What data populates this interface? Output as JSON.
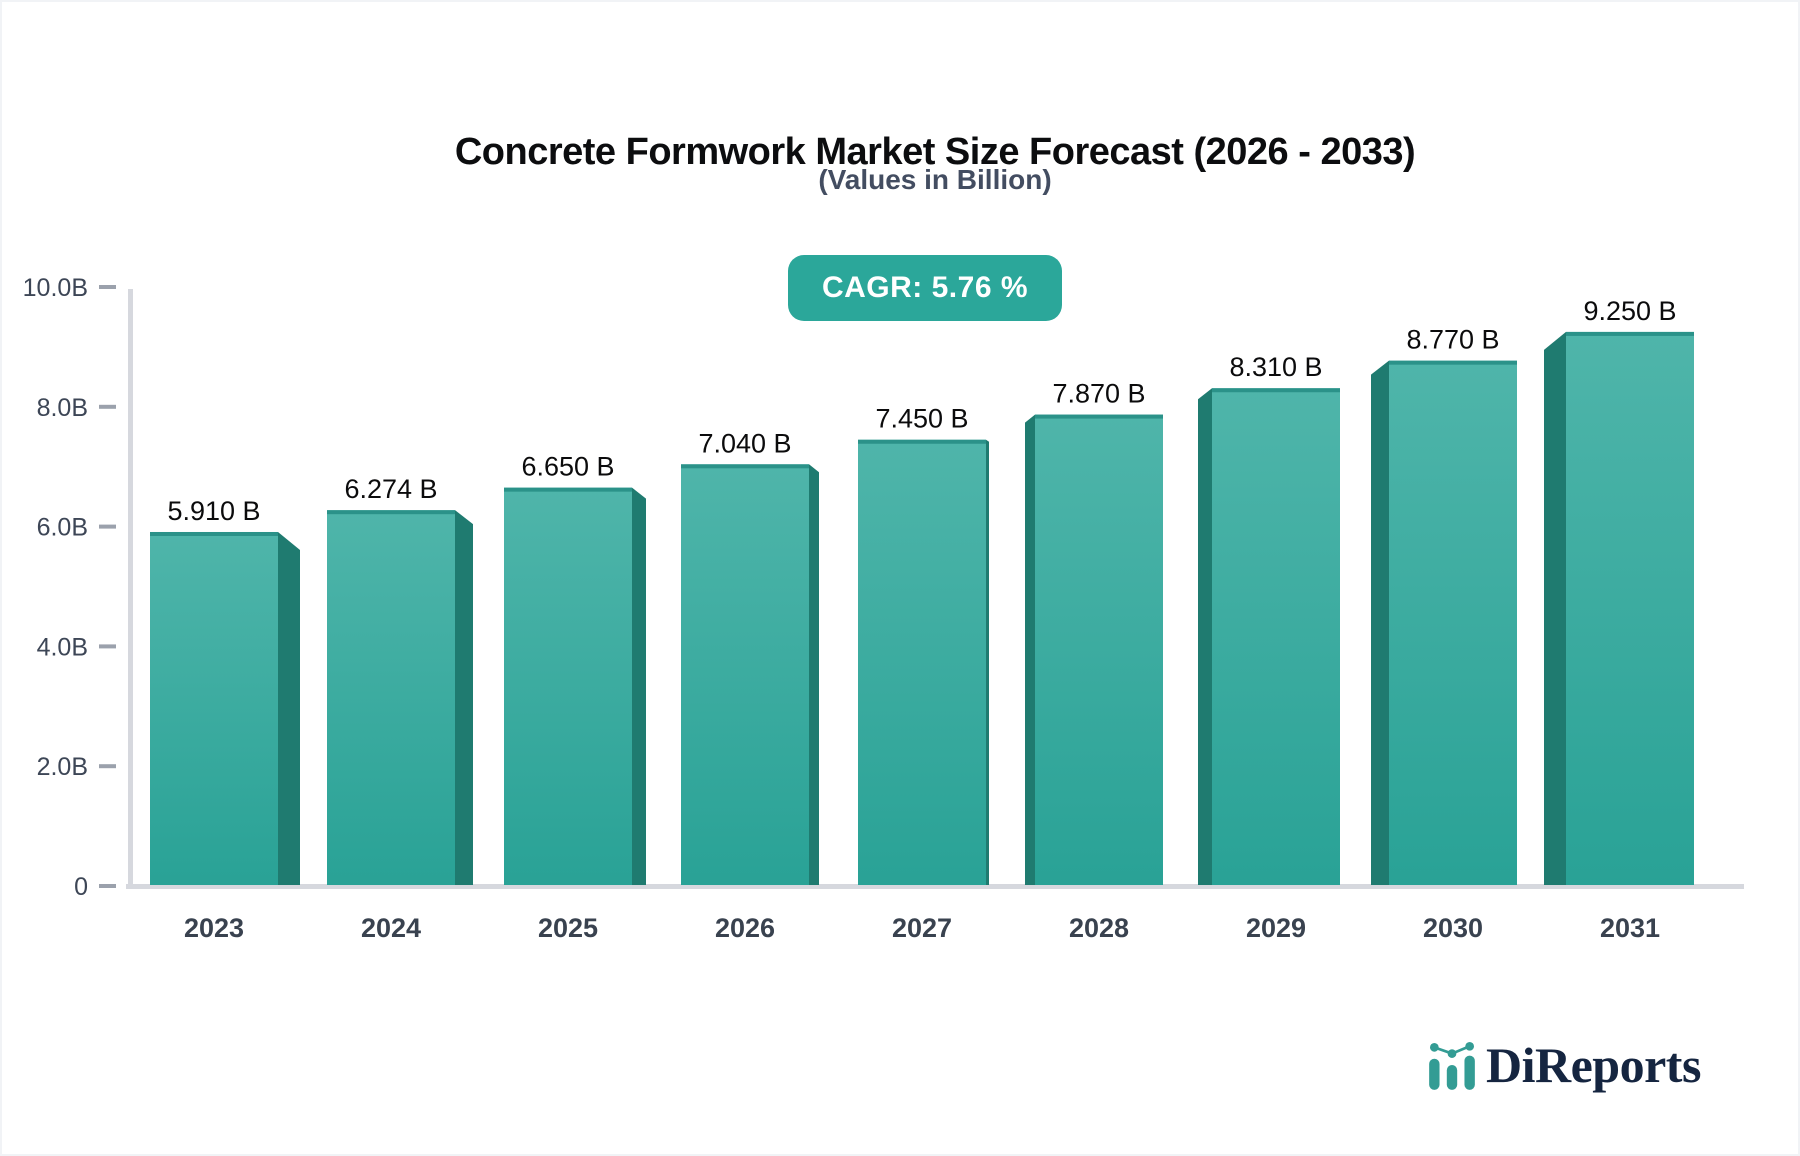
{
  "header": {
    "title": "Concrete Formwork Market Size Forecast (2026 - 2033)",
    "subtitle": "(Values in Billion)",
    "cagr_label": "CAGR: 5.76 %",
    "badge_color": "#2ba79a"
  },
  "chart_data": {
    "type": "bar",
    "title": "Concrete Formwork Market Size Forecast (2026 - 2033)",
    "subtitle": "(Values in Billion)",
    "cagr_percent": 5.76,
    "categories": [
      "2023",
      "2024",
      "2025",
      "2026",
      "2027",
      "2028",
      "2029",
      "2030",
      "2031"
    ],
    "values": [
      5.91,
      6.274,
      6.65,
      7.04,
      7.45,
      7.87,
      8.31,
      8.77,
      9.25
    ],
    "value_labels": [
      "5.910 B",
      "6.274 B",
      "6.650 B",
      "7.040 B",
      "7.450 B",
      "7.870 B",
      "8.310 B",
      "8.770 B",
      "9.250 B"
    ],
    "xlabel": "",
    "ylabel": "",
    "ylim": [
      0,
      10
    ],
    "yticks": {
      "values": [
        0,
        2,
        4,
        6,
        8,
        10
      ],
      "labels": [
        "0",
        "2.0B",
        "4.0B",
        "6.0B",
        "8.0B",
        "10.0B"
      ]
    },
    "grid": false,
    "legend": "none",
    "style": "3d-perspective-bars",
    "colors": {
      "bar_face_top": "#4fb5aa",
      "bar_face_bottom": "#29a296",
      "bar_side": "#1f7b70",
      "bar_top_edge": "#2b9289",
      "axis_line": "#d6d8de",
      "tick_dash": "#9ba1ac",
      "tick_label": "#3d4656",
      "year_label": "#39424f",
      "value_label": "#0b0b0c"
    }
  },
  "branding": {
    "logo_text": "DiReports",
    "logo_icon": "bar-line-chart-icon",
    "logo_icon_color": "#339c94",
    "logo_text_color": "#152540"
  }
}
